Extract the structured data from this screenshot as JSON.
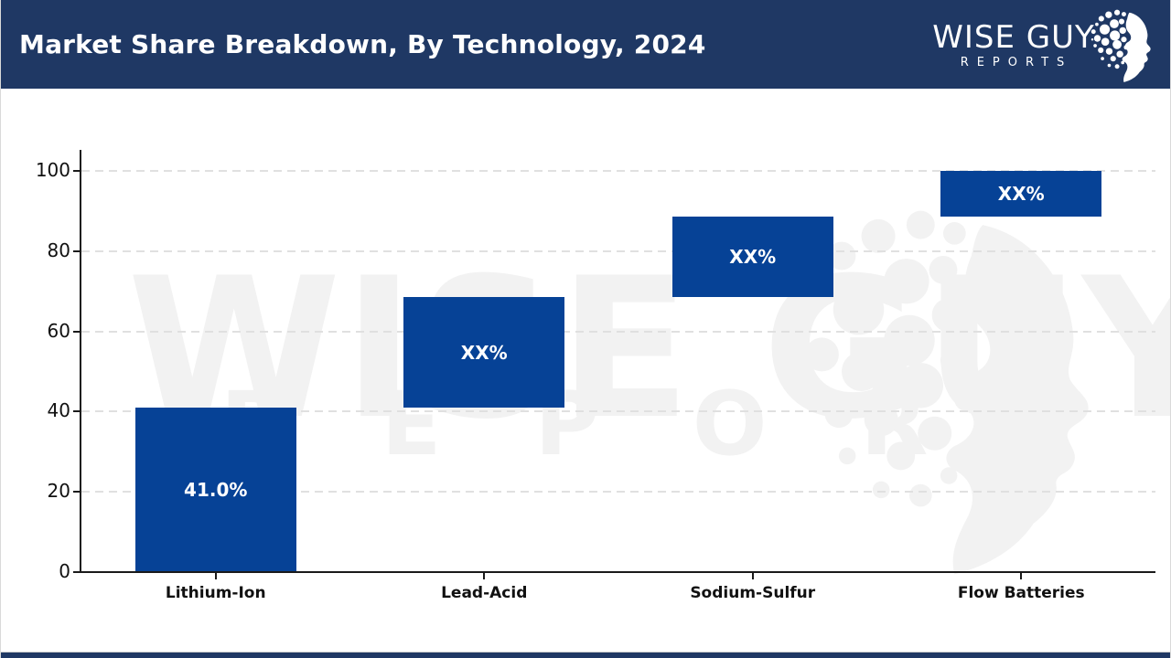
{
  "header": {
    "title": "Market Share Breakdown, By Technology, 2024",
    "logo_line1": "WISE GUY",
    "logo_line2": "REPORTS"
  },
  "watermark": {
    "line1": "WISE GUY",
    "line2": "REPORTS"
  },
  "chart_data": {
    "type": "bar",
    "subtype": "waterfall",
    "title": "Market Share Breakdown, By Technology, 2024",
    "categories": [
      "Lithium-Ion",
      "Lead-Acid",
      "Sodium-Sulfur",
      "Flow Batteries"
    ],
    "bars": [
      {
        "category": "Lithium-Ion",
        "start": 0,
        "end": 41,
        "label": "41.0%"
      },
      {
        "category": "Lead-Acid",
        "start": 41,
        "end": 68.5,
        "label": "XX%"
      },
      {
        "category": "Sodium-Sulfur",
        "start": 68.5,
        "end": 88.5,
        "label": "XX%"
      },
      {
        "category": "Flow Batteries",
        "start": 88.5,
        "end": 100,
        "label": "XX%"
      }
    ],
    "yticks": [
      0,
      20,
      40,
      60,
      80,
      100
    ],
    "ylim": [
      0,
      105
    ],
    "xlabel": "",
    "ylabel": "",
    "grid": true,
    "grid_style": "dashed horizontal",
    "legend": false
  },
  "colors": {
    "header_bg": "#1f3864",
    "footer_bg": "#1f3864",
    "bar": "#064296",
    "bar_label": "#ffffff",
    "grid": "#e0e0e0",
    "axis": "#1a1a1a",
    "tick_label": "#111111",
    "watermark": "#f2f2f2",
    "title_text": "#ffffff"
  }
}
